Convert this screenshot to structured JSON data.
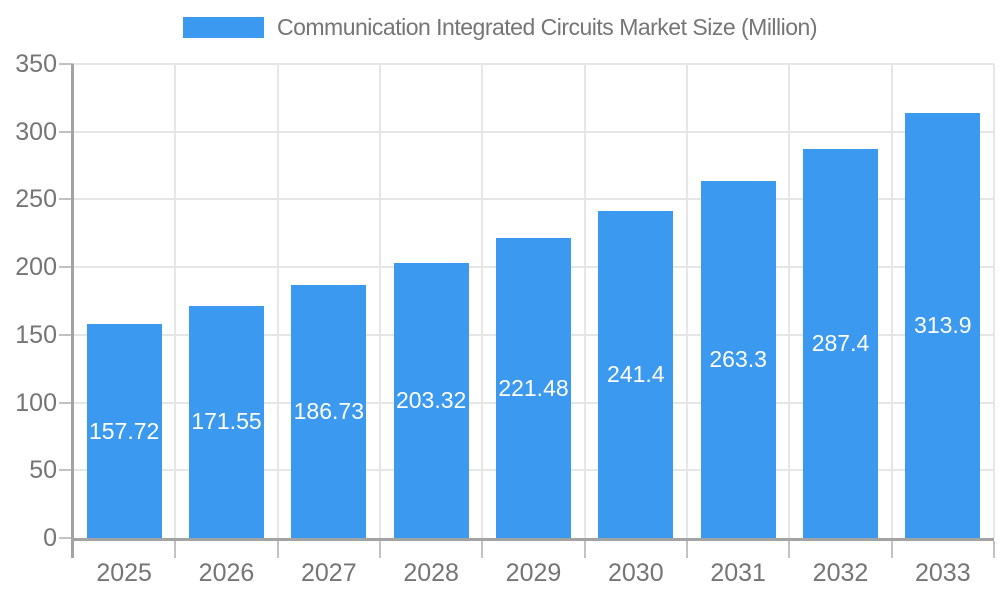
{
  "chart_data": {
    "type": "bar",
    "title": "Communication Integrated Circuits Market Size (Million)",
    "categories": [
      "2025",
      "2026",
      "2027",
      "2028",
      "2029",
      "2030",
      "2031",
      "2032",
      "2033"
    ],
    "values": [
      157.72,
      171.55,
      186.73,
      203.32,
      221.48,
      241.4,
      263.3,
      287.4,
      313.9
    ],
    "value_labels": [
      "157.72",
      "171.55",
      "186.73",
      "203.32",
      "221.48",
      "241.4",
      "263.3",
      "287.4",
      "313.9"
    ],
    "xlabel": "",
    "ylabel": "",
    "ylim": [
      0,
      350
    ],
    "yticks": [
      0,
      50,
      100,
      150,
      200,
      250,
      300,
      350
    ],
    "grid": {
      "horizontal": true,
      "vertical": true
    },
    "legend_position": "top",
    "colors": {
      "bar": "#3b99f0",
      "grid": "#e6e6e6",
      "axis": "#a3a3a3",
      "tick": "#c2c2c2",
      "axis_label": "#757575",
      "title": "#757575",
      "value_label": "#ffffff",
      "background": "#ffffff"
    }
  }
}
